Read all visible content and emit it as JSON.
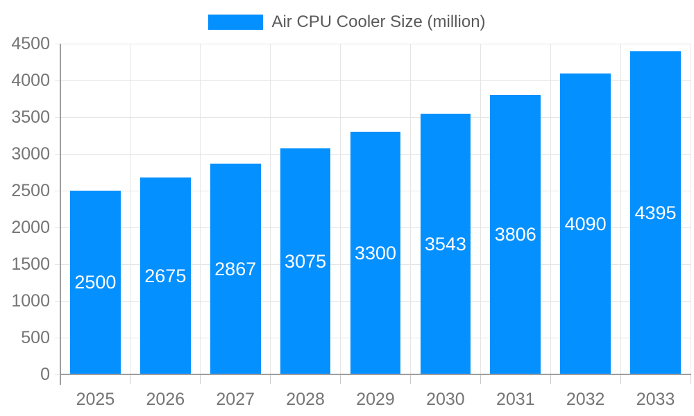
{
  "chart_data": {
    "type": "bar",
    "title": "",
    "legend": "Air CPU Cooler Size (million)",
    "legend_position": "top",
    "categories": [
      "2025",
      "2026",
      "2027",
      "2028",
      "2029",
      "2030",
      "2031",
      "2032",
      "2033"
    ],
    "series": [
      {
        "name": "Air CPU Cooler Size (million)",
        "values": [
          2500,
          2675,
          2867,
          3075,
          3300,
          3543,
          3806,
          4090,
          4395
        ]
      }
    ],
    "value_labels": [
      "2500",
      "2675",
      "2867",
      "3075",
      "3300",
      "3543",
      "3806",
      "4090",
      "4395"
    ],
    "xlabel": "",
    "ylabel": "",
    "ylim": [
      0,
      4500
    ],
    "ytick_step": 500,
    "yticks": [
      0,
      500,
      1000,
      1500,
      2000,
      2500,
      3000,
      3500,
      4000,
      4500
    ],
    "grid": true
  },
  "colors": {
    "bar": "#0590ff",
    "grid": "#e5e5e5",
    "axis": "#9e9e9e",
    "tick": "#c9c9c9",
    "axis_label": "#757575",
    "legend_text": "#595959",
    "value_label": "#ffffff",
    "background": "#ffffff"
  }
}
